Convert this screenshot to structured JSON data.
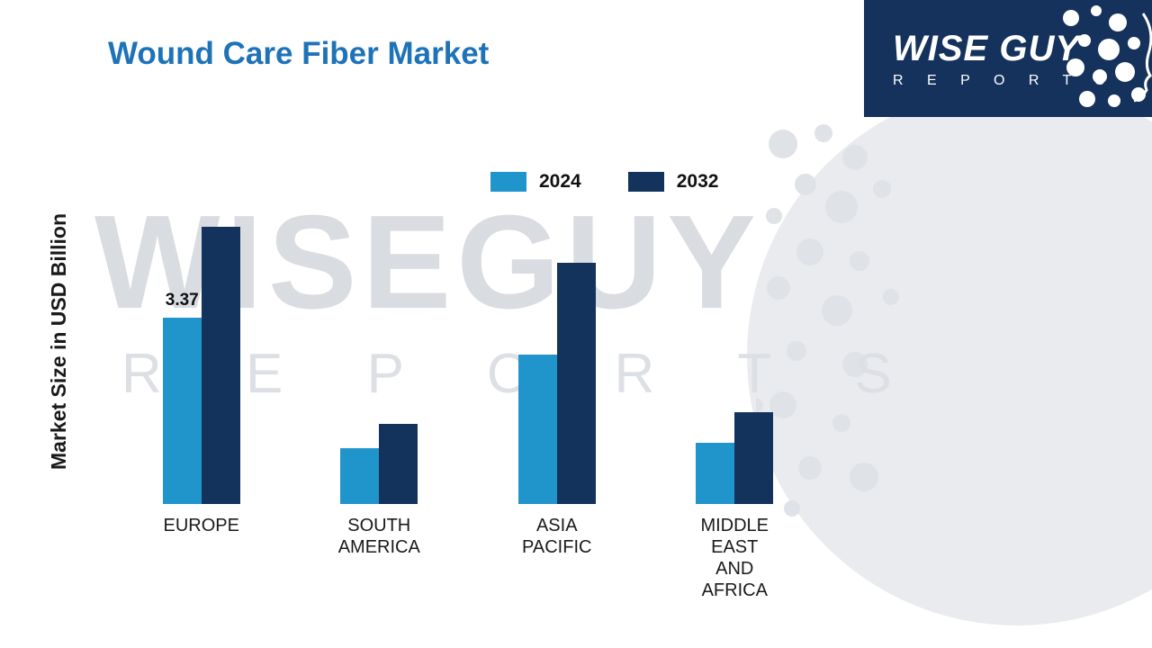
{
  "page": {
    "title": "Wound Care Fiber Market"
  },
  "logo": {
    "brand_top": "WISE GUY",
    "brand_bottom": "R E P O R T S"
  },
  "watermark": {
    "line1": "WISEGUY",
    "line2": "R E P O R T S"
  },
  "chart_data": {
    "type": "bar",
    "title": "Wound Care Fiber Market",
    "ylabel": "Market Size in USD Billion",
    "categories": [
      "EUROPE",
      "SOUTH AMERICA",
      "ASIA PACIFIC",
      "MIDDLE EAST AND AFRICA"
    ],
    "categories_lines": [
      [
        "EUROPE"
      ],
      [
        "SOUTH",
        "AMERICA"
      ],
      [
        "ASIA",
        "PACIFIC"
      ],
      [
        "MIDDLE",
        "EAST",
        "AND",
        "AFRICA"
      ]
    ],
    "series": [
      {
        "name": "2024",
        "color": "#2095cc",
        "values": [
          3.37,
          1.0,
          2.7,
          1.1
        ]
      },
      {
        "name": "2032",
        "color": "#14335c",
        "values": [
          5.0,
          1.45,
          4.35,
          1.65
        ]
      }
    ],
    "data_labels": [
      {
        "series_index": 0,
        "category_index": 0,
        "text": "3.37"
      }
    ],
    "ylim": [
      0,
      5.2
    ],
    "legend_position": "top",
    "grid": false
  }
}
